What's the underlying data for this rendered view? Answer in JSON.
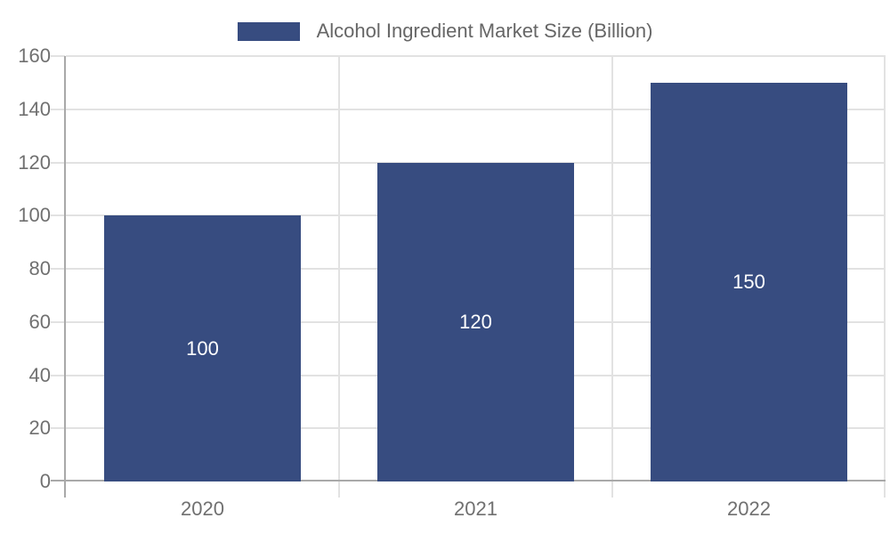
{
  "chart_data": {
    "type": "bar",
    "title": "Alcohol Ingredient Market Size (Billion)",
    "categories": [
      "2020",
      "2021",
      "2022"
    ],
    "series": [
      {
        "name": "Alcohol Ingredient Market Size (Billion)",
        "values": [
          100,
          120,
          150
        ]
      }
    ],
    "data_labels": [
      100,
      120,
      150
    ],
    "xlabel": "",
    "ylabel": "",
    "ylim": [
      0,
      160
    ],
    "yticks": [
      0,
      20,
      40,
      60,
      80,
      100,
      120,
      140,
      160
    ],
    "grid": true,
    "legend_position": "top-center",
    "data_label_position": "inside-center",
    "style": {
      "bar_color": "#374C80",
      "grid_color": "#e2e2e2",
      "axis_color": "#a9a9a9",
      "tick_label_color": "#707070",
      "legend_text_color": "#666666",
      "data_label_color": "#ffffff",
      "background": "#ffffff"
    }
  }
}
